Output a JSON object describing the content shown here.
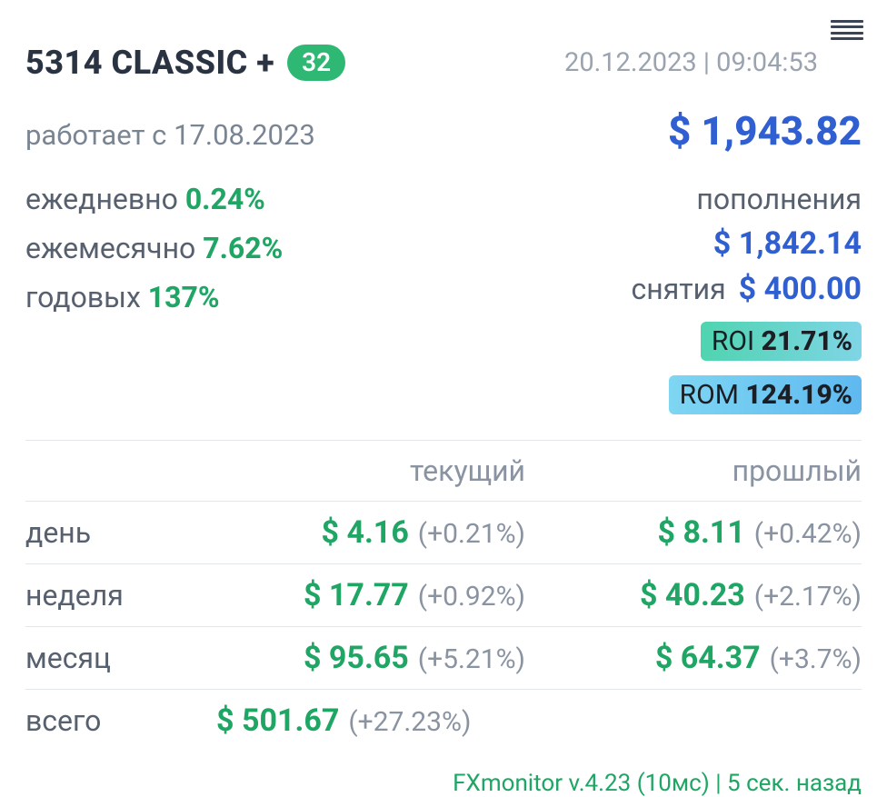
{
  "colors": {
    "text_primary": "#2a3342",
    "text_muted": "#7a8594",
    "text_label": "#57606f",
    "text_light": "#9aa3af",
    "green": "#1fa564",
    "blue": "#2f5fd0",
    "badge_bg": "#2fb873",
    "border": "#e2e5ea",
    "roi_grad_from": "#4fd4b0",
    "roi_grad_to": "#7fd5e6",
    "rom_grad_from": "#7ed6f2",
    "rom_grad_to": "#5fb9f0",
    "background": "#ffffff"
  },
  "header": {
    "title": "5314 CLASSIC +",
    "badge": "32",
    "timestamp": "20.12.2023 | 09:04:53"
  },
  "since": "работает с 17.08.2023",
  "balance": "$ 1,943.82",
  "left_stats": [
    {
      "label": "ежедневно",
      "value": "0.24%"
    },
    {
      "label": "ежемесячно",
      "value": "7.62%"
    },
    {
      "label": "годовых",
      "value": "137%"
    }
  ],
  "right_stats": {
    "deposits_label": "пополнения",
    "deposits_value": "$ 1,842.14",
    "withdrawals_label": "снятия",
    "withdrawals_value": "$ 400.00",
    "roi_label": "ROI",
    "roi_value": "21.71%",
    "rom_label": "ROM",
    "rom_value": "124.19%"
  },
  "table": {
    "head_current": "текущий",
    "head_previous": "прошлый",
    "rows": [
      {
        "label": "день",
        "current_money": "$ 4.16",
        "current_pct": "(+0.21%)",
        "prev_money": "$ 8.11",
        "prev_pct": "(+0.42%)"
      },
      {
        "label": "неделя",
        "current_money": "$ 17.77",
        "current_pct": "(+0.92%)",
        "prev_money": "$ 40.23",
        "prev_pct": "(+2.17%)"
      },
      {
        "label": "месяц",
        "current_money": "$ 95.65",
        "current_pct": "(+5.21%)",
        "prev_money": "$ 64.37",
        "prev_pct": "(+3.7%)"
      }
    ],
    "total": {
      "label": "всего",
      "money": "$ 501.67",
      "pct": "(+27.23%)"
    }
  },
  "footer": "FXmonitor v.4.23 (10мс) | 5 сек. назад"
}
